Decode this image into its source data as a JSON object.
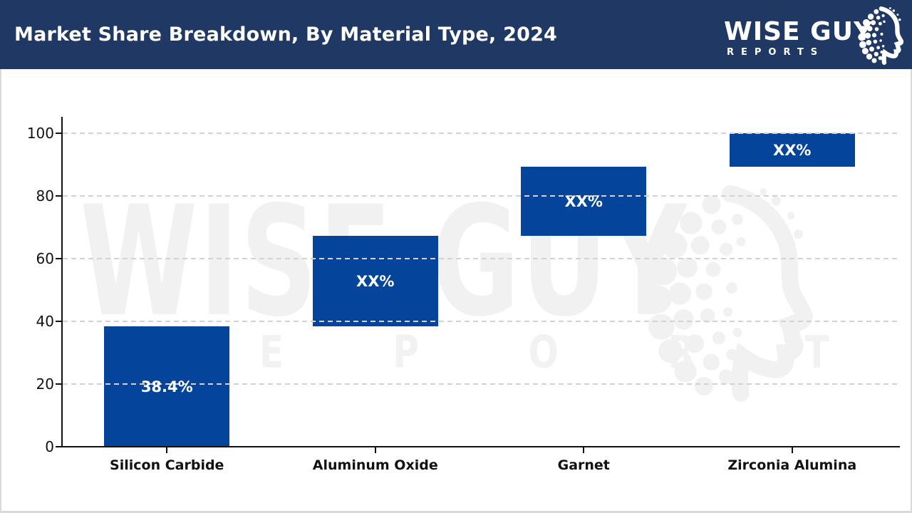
{
  "header": {
    "title": "Market Share Breakdown, By Material Type, 2024",
    "brand": {
      "name": "WISE GUY",
      "sub": "REPORTS"
    }
  },
  "watermark": {
    "name": "WISE GUY",
    "sub": "R E P O R T S"
  },
  "chart_data": {
    "type": "bar",
    "subtype": "waterfall-style market share breakdown (each bar starts where the previous ends)",
    "title": "Market Share Breakdown, By Material Type, 2024",
    "categories": [
      "Silicon Carbide",
      "Aluminum Oxide",
      "Garnet",
      "Zirconia Alumina"
    ],
    "bars": [
      {
        "category": "Silicon Carbide",
        "start": 0,
        "end": 38.4,
        "label": "38.4%"
      },
      {
        "category": "Aluminum Oxide",
        "start": 38.4,
        "end": 67.2,
        "label": "XX%"
      },
      {
        "category": "Garnet",
        "start": 67.2,
        "end": 89.3,
        "label": "XX%"
      },
      {
        "category": "Zirconia Alumina",
        "start": 89.3,
        "end": 100,
        "label": "XX%"
      }
    ],
    "y_ticks": [
      0,
      20,
      40,
      60,
      80,
      100
    ],
    "ylim": [
      0,
      105
    ],
    "xlabel": "",
    "ylabel": "",
    "grid": "horizontal dashed gridlines drawn above bars",
    "legend": "none",
    "bar_color": "#05449B",
    "bar_label_color": "#FFFFFF"
  },
  "colors": {
    "header_bg": "#1F3864",
    "title_text": "#FFFFFF",
    "bar": "#05449B",
    "axis": "#111111",
    "grid": "#D2D2D2",
    "watermark": "#F1F1F1",
    "canvas_border": "#D9D9D9"
  }
}
